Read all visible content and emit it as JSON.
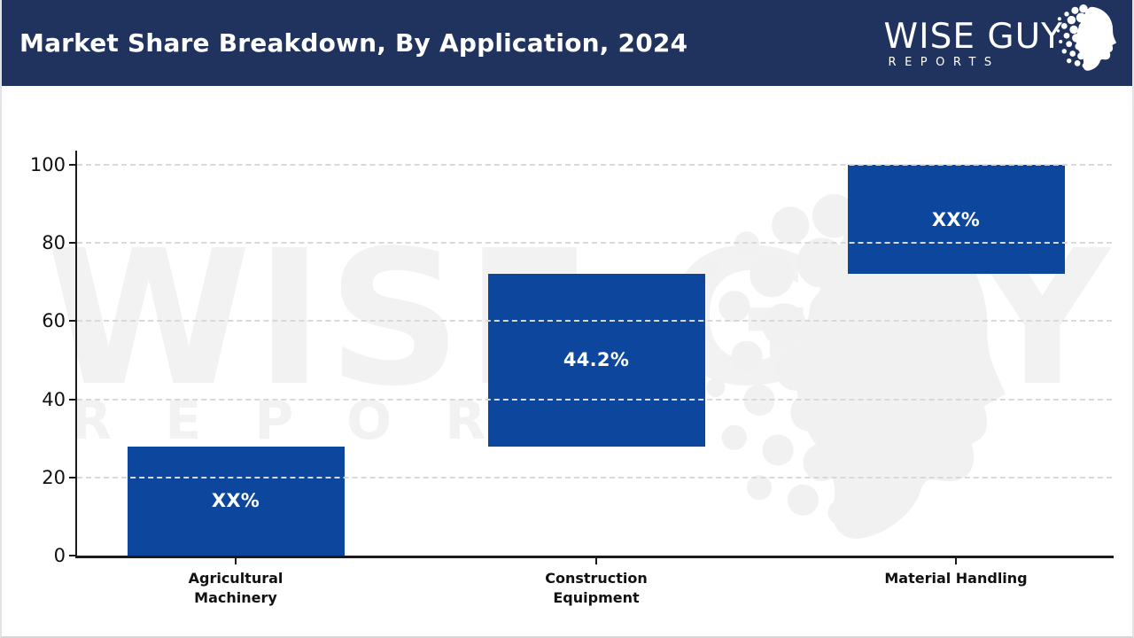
{
  "header": {
    "title": "Market Share Breakdown, By Application, 2024",
    "bg_color": "#20335e",
    "logo_line1": "WISE GUY",
    "logo_line2": "REPORTS"
  },
  "watermark": {
    "line1": "WISE GUY",
    "line2": "REPORTS"
  },
  "chart_data": {
    "type": "bar",
    "variant": "floating-stacked-percentage",
    "title": "Market Share Breakdown, By Application, 2024",
    "categories": [
      "Agricultural Machinery",
      "Construction Equipment",
      "Material Handling"
    ],
    "category_label_lines": [
      [
        "Agricultural",
        "Machinery"
      ],
      [
        "Construction",
        "Equipment"
      ],
      [
        "Material Handling"
      ]
    ],
    "segments": [
      {
        "category": "Agricultural Machinery",
        "start": 0,
        "end": 27.9,
        "label": "XX%"
      },
      {
        "category": "Construction Equipment",
        "start": 27.9,
        "end": 72.1,
        "label": "44.2%"
      },
      {
        "category": "Material Handling",
        "start": 72.1,
        "end": 100,
        "label": "XX%"
      }
    ],
    "xlabel": "",
    "ylabel": "",
    "ylim": [
      0,
      100
    ],
    "yticks": [
      0,
      20,
      40,
      60,
      80,
      100
    ],
    "grid": {
      "axis": "y",
      "style": "dashed",
      "color": "#d9d9d9"
    },
    "legend": "none",
    "bar_color": "#0c479d",
    "bar_label_color": "#ffffff",
    "axis_color": "#1a1a1a"
  }
}
